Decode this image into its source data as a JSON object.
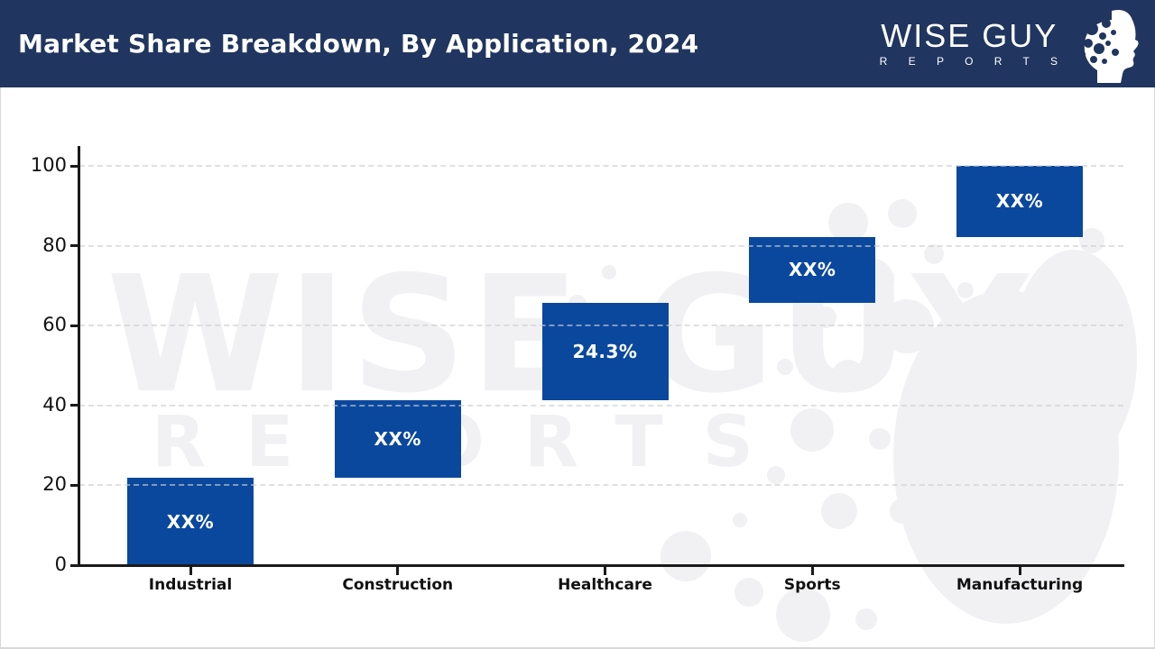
{
  "header": {
    "title": "Market Share Breakdown, By Application, 2024",
    "logo": {
      "line1": "WISE GUY",
      "line2": "R E P O R T S"
    }
  },
  "watermark": {
    "line1": "WISE GUY",
    "line2": "R E P O R T S"
  },
  "chart_data": {
    "type": "bar",
    "subtype": "waterfall-floating-bars",
    "title": "Market Share Breakdown, By Application, 2024",
    "categories": [
      "Industrial",
      "Construction",
      "Healthcare",
      "Sports",
      "Manufacturing"
    ],
    "segments": [
      {
        "category": "Industrial",
        "start": 0,
        "end": 21.8,
        "label": "XX%"
      },
      {
        "category": "Construction",
        "start": 21.8,
        "end": 41.4,
        "label": "XX%"
      },
      {
        "category": "Healthcare",
        "start": 41.4,
        "end": 65.7,
        "label": "24.3%"
      },
      {
        "category": "Sports",
        "start": 65.7,
        "end": 82.2,
        "label": "XX%"
      },
      {
        "category": "Manufacturing",
        "start": 82.2,
        "end": 100,
        "label": "XX%"
      }
    ],
    "yticks": [
      0,
      20,
      40,
      60,
      80,
      100
    ],
    "ylim": [
      0,
      105
    ],
    "xlabel": "",
    "ylabel": "",
    "grid": "horizontal-dashed",
    "legend": "none",
    "bar_color": "#0a489e",
    "bar_label_color": "#ffffff",
    "axis_color": "#1a1a1a",
    "gridline_color": "#d9d9d9",
    "header_color": "#20355f",
    "watermark_color": "#f1f1f3"
  }
}
